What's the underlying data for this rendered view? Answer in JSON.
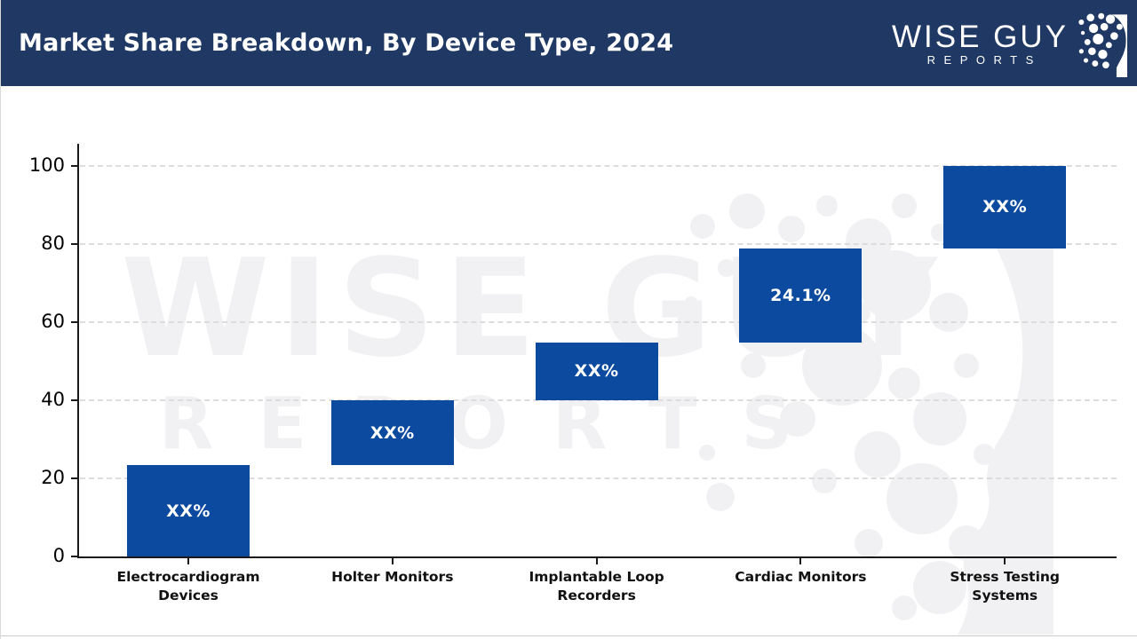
{
  "header": {
    "title": "Market Share Breakdown, By Device Type, 2024",
    "logo": {
      "line1": "WISE GUY",
      "line2": "REPORTS"
    }
  },
  "watermark": {
    "line1": "WISE GUY",
    "line2": "REPORTS"
  },
  "colors": {
    "header_bg": "#1f3864",
    "bar": "#0b4a9e",
    "grid": "#dcdcdc",
    "axis": "#1a1a1a",
    "bar_label_text": "#ffffff",
    "watermark": "#f1f1f3"
  },
  "chart_data": {
    "type": "bar",
    "variant": "waterfall",
    "title": "Market Share Breakdown, By Device Type, 2024",
    "xlabel": "",
    "ylabel": "",
    "ylim": [
      0,
      105
    ],
    "yticks": [
      0,
      20,
      40,
      60,
      80,
      100
    ],
    "grid": "horizontal-dashed",
    "legend": "none",
    "categories": [
      "Electrocardiogram Devices",
      "Holter Monitors",
      "Implantable Loop Recorders",
      "Cardiac Monitors",
      "Stress Testing Systems"
    ],
    "category_lines": [
      [
        "Electrocardiogram",
        "Devices"
      ],
      [
        "Holter Monitors"
      ],
      [
        "Implantable Loop",
        "Recorders"
      ],
      [
        "Cardiac Monitors"
      ],
      [
        "Stress Testing",
        "Systems"
      ]
    ],
    "bars": [
      {
        "category": "Electrocardiogram Devices",
        "start": 0,
        "end": 23.4,
        "label": "XX%"
      },
      {
        "category": "Holter Monitors",
        "start": 23.4,
        "end": 40.0,
        "label": "XX%"
      },
      {
        "category": "Implantable Loop Recorders",
        "start": 40.0,
        "end": 54.8,
        "label": "XX%"
      },
      {
        "category": "Cardiac Monitors",
        "start": 54.8,
        "end": 78.9,
        "label": "24.1%"
      },
      {
        "category": "Stress Testing Systems",
        "start": 78.9,
        "end": 100.0,
        "label": "XX%"
      }
    ]
  }
}
